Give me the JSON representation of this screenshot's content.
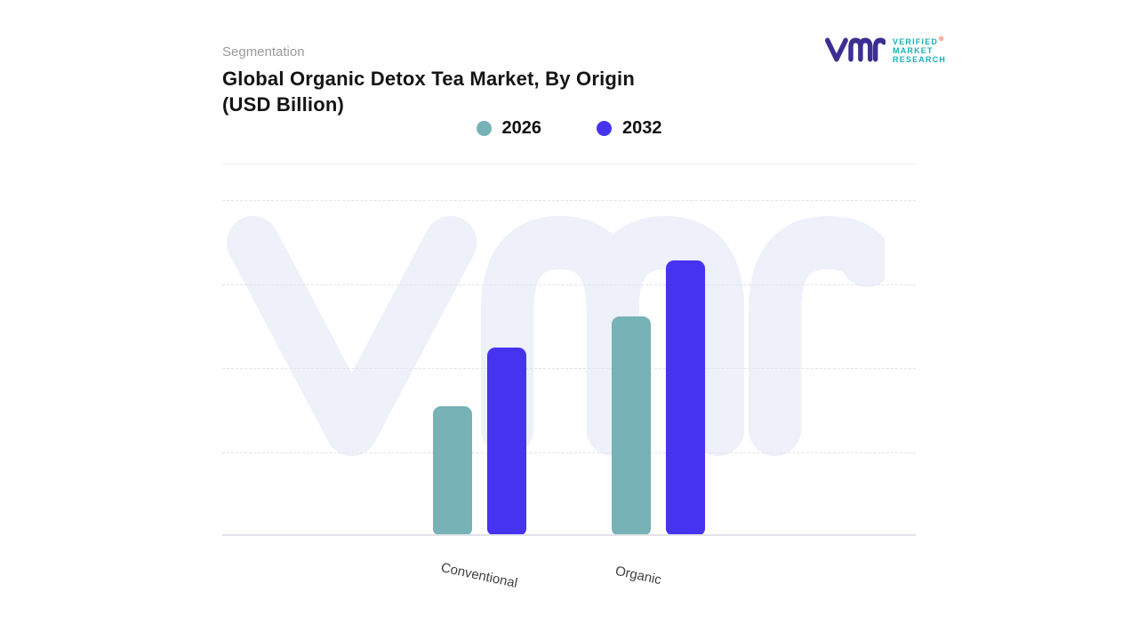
{
  "header": {
    "eyebrow": "Segmentation",
    "title_line1": "Global Organic Detox Tea Market, By Origin",
    "title_line2": "(USD Billion)"
  },
  "brand": {
    "words": [
      "VERIFIED",
      "MARKET",
      "RESEARCH"
    ],
    "registered_mark": "®",
    "logo_color": "#3c2f93",
    "text_color": "#16b2b8",
    "registered_color": "#f2502c"
  },
  "chart_data": {
    "type": "bar",
    "title": "Global Organic Detox Tea Market, By Origin (USD Billion)",
    "categories": [
      "Conventional",
      "Organic"
    ],
    "series": [
      {
        "name": "2026",
        "color": "#76b2b6",
        "values": [
          1.45,
          2.46
        ]
      },
      {
        "name": "2032",
        "color": "#4633f0",
        "values": [
          2.11,
          3.09
        ]
      }
    ],
    "xlabel": "",
    "ylabel": "",
    "ylim": [
      0,
      3.78
    ],
    "y_axis_ticks_visible": false,
    "gridlines": "horizontal-dashed",
    "legend_position": "top-center",
    "watermark_color": "#eef0fa"
  }
}
